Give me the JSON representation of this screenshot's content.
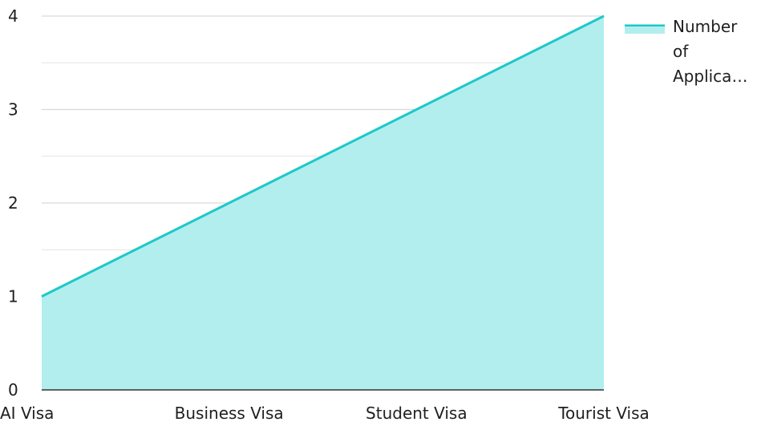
{
  "chart_data": {
    "type": "area",
    "title": "",
    "xlabel": "",
    "ylabel": "",
    "categories": [
      "AI Visa",
      "Business Visa",
      "Student Visa",
      "Tourist Visa"
    ],
    "series": [
      {
        "name": "Number of Applica…",
        "values": [
          1,
          2,
          3,
          4
        ]
      }
    ],
    "ylim": [
      0,
      4
    ],
    "y_ticks": [
      "0",
      "1",
      "2",
      "3",
      "4"
    ],
    "grid": true,
    "legend_position": "right",
    "legend_lines": [
      "Number",
      "of",
      "Applica…"
    ],
    "colors": {
      "line": "#1ec8c8",
      "fill": "#b2eeee",
      "grid": "#d9d9d9",
      "axis": "#333333"
    }
  }
}
